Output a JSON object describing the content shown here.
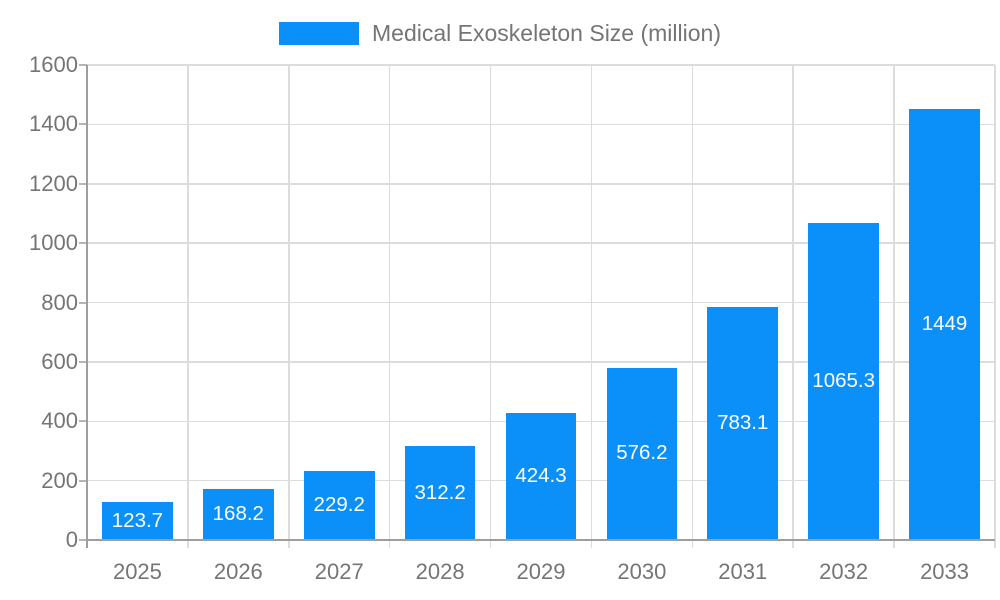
{
  "chart_data": {
    "type": "bar",
    "title": "Medical Exoskeleton Size (million)",
    "categories": [
      "2025",
      "2026",
      "2027",
      "2028",
      "2029",
      "2030",
      "2031",
      "2032",
      "2033"
    ],
    "values": [
      123.7,
      168.2,
      229.2,
      312.2,
      424.3,
      576.2,
      783.1,
      1065.3,
      1449
    ],
    "value_labels": [
      "123.7",
      "168.2",
      "229.2",
      "312.2",
      "424.3",
      "576.2",
      "783.1",
      "1065.3",
      "1449"
    ],
    "xlabel": "",
    "ylabel": "",
    "ylim": [
      0,
      1600
    ],
    "yticks": [
      0,
      200,
      400,
      600,
      800,
      1000,
      1200,
      1400,
      1600
    ],
    "ytick_labels": [
      "0",
      "200",
      "400",
      "600",
      "800",
      "1000",
      "1200",
      "1400",
      "1600"
    ],
    "grid": true,
    "legend_position": "top-center",
    "bar_width_fraction": 0.7,
    "value_label_position": "inside-center",
    "colors": {
      "bar": "#0a90f8",
      "value_label_text": "#ffffff",
      "axis_text": "#757575",
      "title_text": "#757575",
      "gridline": "#dcdcdc",
      "axis_line": "#9e9e9e",
      "background": "#ffffff"
    }
  }
}
